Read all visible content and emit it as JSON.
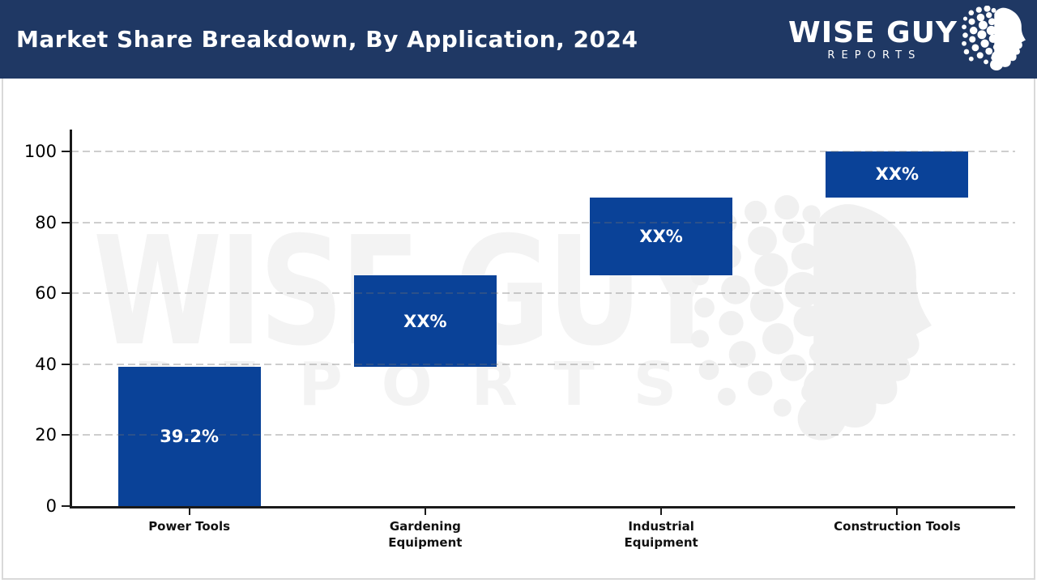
{
  "header": {
    "title": "Market Share Breakdown, By Application, 2024",
    "logo": {
      "line1": "WISE GUY",
      "line2": "REPORTS"
    }
  },
  "watermark": {
    "line1": "WISE GUY",
    "line2": "REPORTS"
  },
  "chart_data": {
    "type": "bar",
    "variant": "floating-waterfall",
    "title": "Market Share Breakdown, By Application, 2024",
    "categories": [
      "Power Tools",
      "Gardening Equipment",
      "Industrial Equipment",
      "Construction Tools"
    ],
    "categories_display": [
      "Power Tools",
      "Gardening\nEquipment",
      "Industrial\nEquipment",
      "Construction Tools"
    ],
    "segments": [
      {
        "category": "Power Tools",
        "start": 0,
        "end": 39.2,
        "label": "39.2%"
      },
      {
        "category": "Gardening Equipment",
        "start": 39.2,
        "end": 65,
        "label": "XX%"
      },
      {
        "category": "Industrial Equipment",
        "start": 65,
        "end": 87,
        "label": "XX%"
      },
      {
        "category": "Construction Tools",
        "start": 87,
        "end": 100,
        "label": "XX%"
      }
    ],
    "ylim": [
      0,
      100
    ],
    "yticks": [
      0,
      20,
      40,
      60,
      80,
      100
    ],
    "xlabel": "",
    "ylabel": "",
    "grid": {
      "horizontal": true,
      "style": "dashed",
      "above_bars": true
    },
    "legend": false
  },
  "colors": {
    "header_bg": "#1F3864",
    "bar": "#0A4298",
    "bar_label": "#ffffff",
    "axis": "#1a1a1a",
    "grid": "#d4d4d4",
    "watermark": "#f3f3f3",
    "frame": "#d9d9d9",
    "title_text": "#ffffff"
  }
}
